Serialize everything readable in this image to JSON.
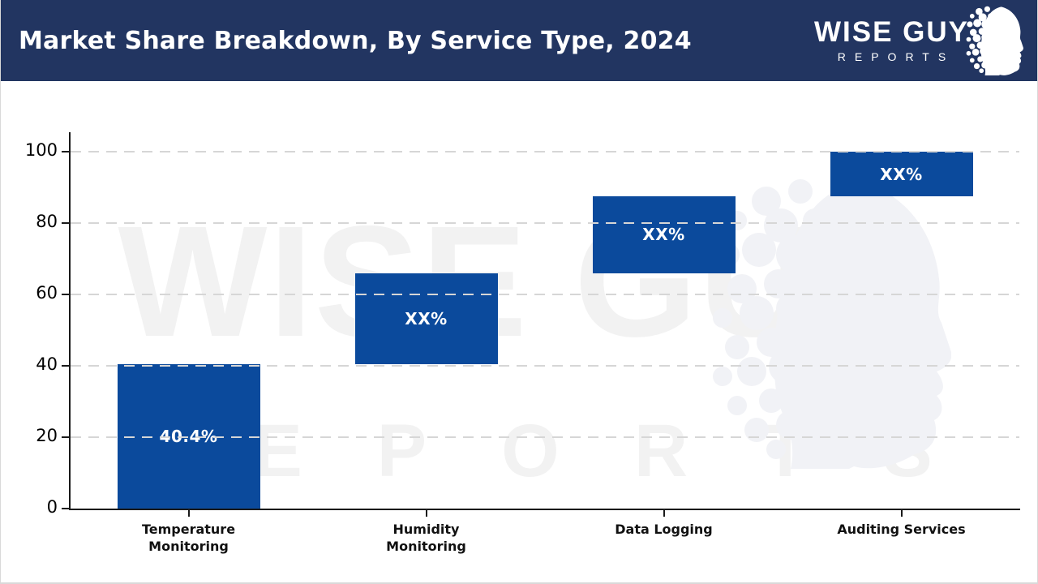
{
  "header": {
    "title": "Market Share Breakdown, By Service Type, 2024"
  },
  "logo": {
    "name": "WISE GUY",
    "sub": "REPORTS"
  },
  "watermark": {
    "line1": "WISE GUY",
    "line2": "REPORTS"
  },
  "colors": {
    "header_bg": "#223561",
    "bar": "#0b4a9c",
    "bar_label": "#ffffff",
    "watermark": "#f2f2f2",
    "axis": "#1a1a1a",
    "grid": "#d6d6d6"
  },
  "chart_data": {
    "type": "bar",
    "subtype": "waterfall",
    "title": "Market Share Breakdown, By Service Type, 2024",
    "categories": [
      "Temperature\nMonitoring",
      "Humidity\nMonitoring",
      "Data Logging",
      "Auditing Services"
    ],
    "segments": [
      {
        "category": "Temperature\nMonitoring",
        "start": 0,
        "end": 40.4,
        "label": "40.4%"
      },
      {
        "category": "Humidity\nMonitoring",
        "start": 40.4,
        "end": 66,
        "label": "XX%"
      },
      {
        "category": "Data Logging",
        "start": 66,
        "end": 87.5,
        "label": "XX%"
      },
      {
        "category": "Auditing Services",
        "start": 87.5,
        "end": 100,
        "label": "XX%"
      }
    ],
    "ylim": [
      0,
      100
    ],
    "yticks": [
      0,
      20,
      40,
      60,
      80,
      100
    ],
    "grid": "horizontal-dashed",
    "legend": "none",
    "xlabel": "",
    "ylabel": ""
  }
}
